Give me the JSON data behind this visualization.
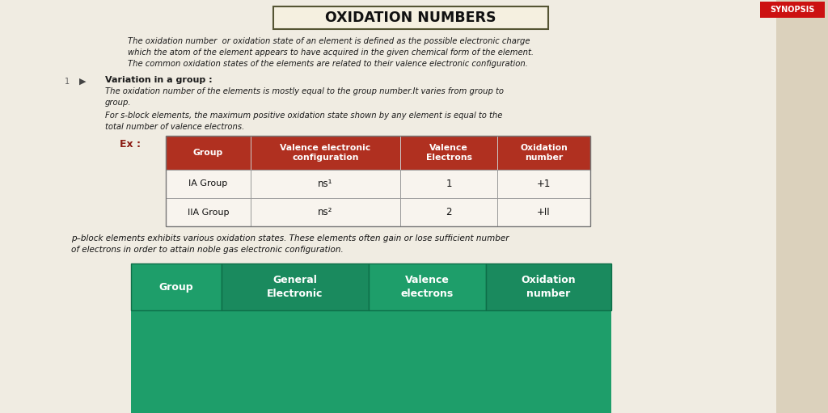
{
  "background_color": "#e8e4dc",
  "page_color": "#f0ece2",
  "title": "OXIDATION NUMBERS",
  "title_box_facecolor": "#f5f0e0",
  "title_box_edgecolor": "#555533",
  "synopsis_bg": "#cc1111",
  "synopsis_text": "SYNOPSIS",
  "body_text_1a": "The oxidation number  or oxidation state of an element is defined as the possible electronic charge",
  "body_text_1b": "which the atom of the element appears to have acquired in the given chemical form of the element.",
  "body_text_1c": "The common oxidation states of the elements are related to their valence electronic configuration.",
  "variation_bold": "Variation in a group :",
  "variation_text_a": "The oxidation number of the elements is mostly equal to the group number.It varies from group to",
  "variation_text_b": "group.",
  "sblock_text_a": "For s-block elements, the maximum positive oxidation state shown by any element is equal to the",
  "sblock_text_b": "total number of valence electrons.",
  "ex_label": "Ex :",
  "table1_header_bg": "#b03020",
  "table1_row_bg": "#f8f4ee",
  "table1_border_color": "#999999",
  "table1_headers": [
    "Group",
    "Valence electronic\nconfiguration",
    "Valence\nElectrons",
    "Oxidation\nnumber"
  ],
  "table1_rows": [
    [
      "IA Group",
      "ns¹",
      "1",
      "+1"
    ],
    [
      "IIA Group",
      "ns²",
      "2",
      "+II"
    ]
  ],
  "pblock_text_a": "p–block elements exhibits various oxidation states. These elements often gain or lose sufficient number",
  "pblock_text_b": "of electrons in order to attain noble gas electronic configuration.",
  "table2_bg": "#1e9e6a",
  "table2_cell_bg": "#1a8a5e",
  "table2_border": "#0d6e48",
  "table2_headers": [
    "Group",
    "General\nElectronic",
    "Valence\nelectrons",
    "Oxidation\nnumber"
  ],
  "text_dark": "#1a1a1a",
  "text_italic_color": "#111111"
}
